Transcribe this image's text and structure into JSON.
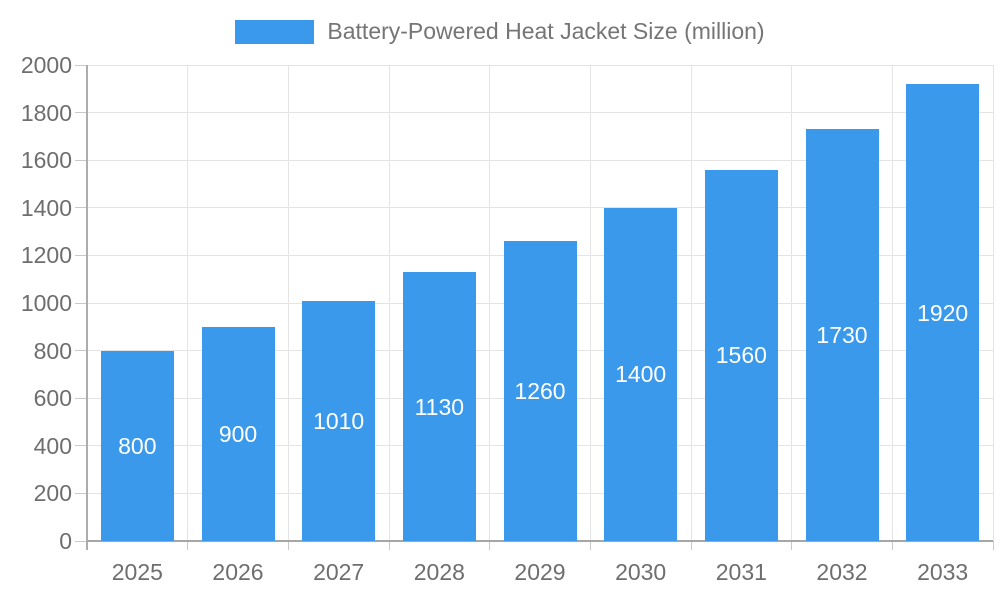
{
  "chart_data": {
    "type": "bar",
    "title": "Battery-Powered Heat Jacket Size (million)",
    "legend_entries": [
      "Battery-Powered Heat Jacket Size (million)"
    ],
    "legend_position": "top-center",
    "categories": [
      "2025",
      "2026",
      "2027",
      "2028",
      "2029",
      "2030",
      "2031",
      "2032",
      "2033"
    ],
    "values": [
      800,
      900,
      1010,
      1130,
      1260,
      1400,
      1560,
      1730,
      1920
    ],
    "xlabel": "",
    "ylabel": "",
    "ylim": [
      0,
      2000
    ],
    "ytick_step": 200,
    "yticks": [
      0,
      200,
      400,
      600,
      800,
      1000,
      1200,
      1400,
      1600,
      1800,
      2000
    ],
    "grid": true,
    "value_labels": "inside-center",
    "colors": {
      "bar": "#3b99ec",
      "value_label": "#ffffff",
      "axis_label": "#6e6e6e",
      "legend_text": "#757575",
      "gridline": "#e4e4e4",
      "axis_line": "#a6a6a6",
      "tick": "#c9c9c9",
      "background": "#ffffff"
    }
  }
}
